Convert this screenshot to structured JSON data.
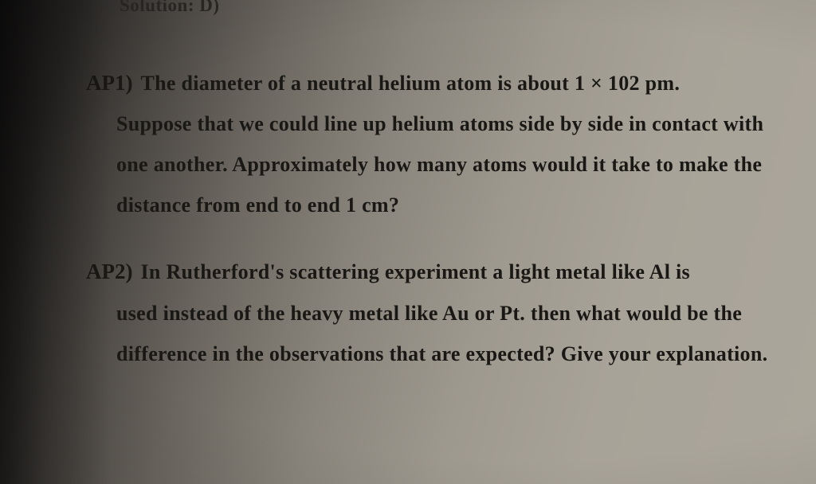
{
  "header_fragment": "Solution: D)",
  "questions": [
    {
      "label": "AP1)",
      "first_line": "The diameter of a neutral helium atom is about 1 × 102 pm.",
      "body": "Suppose that we could line up helium atoms side by side in contact with one another. Approximately how many atoms would it take to make the distance from end to end 1 cm?"
    },
    {
      "label": "AP2)",
      "first_line": "In Rutherford's scattering experiment a light metal like Al is",
      "body": "used instead of the heavy metal like Au or Pt. then what would be the difference in the observations that are expected? Give your explanation."
    }
  ],
  "style": {
    "text_color": "#1a1814",
    "label_fontsize": 27,
    "body_fontsize": 26,
    "line_height": 1.95,
    "font_weight": 600
  }
}
